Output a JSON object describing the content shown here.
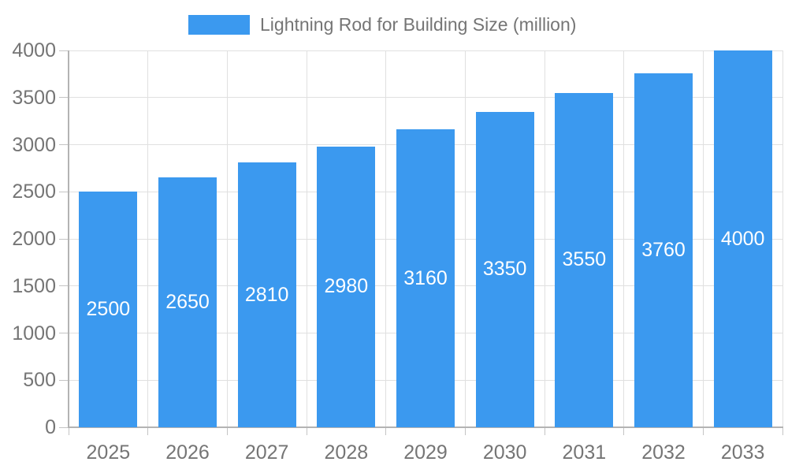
{
  "chart_data": {
    "type": "bar",
    "title": "",
    "legend": {
      "label": "Lightning Rod for Building Size (million)",
      "position": "top"
    },
    "categories": [
      "2025",
      "2026",
      "2027",
      "2028",
      "2029",
      "2030",
      "2031",
      "2032",
      "2033"
    ],
    "series": [
      {
        "name": "Lightning Rod for Building Size (million)",
        "values": [
          2500,
          2650,
          2810,
          2980,
          3160,
          3350,
          3550,
          3760,
          4000
        ]
      }
    ],
    "value_labels": [
      2500,
      2650,
      2810,
      2980,
      3160,
      3350,
      3550,
      3760,
      4000
    ],
    "xlabel": "",
    "ylabel": "",
    "ylim": [
      0,
      4000
    ],
    "ytick_step": 500,
    "yticks": [
      0,
      500,
      1000,
      1500,
      2000,
      2500,
      3000,
      3500,
      4000
    ],
    "grid": true,
    "value_label_position": "inside-center",
    "colors": {
      "bar": "#3B99EF",
      "axis_text": "#757575",
      "value_label_text": "#FFFFFF",
      "gridline": "#E0E0E0",
      "tick": "#C4C4C4",
      "axis_line": "#B3B3B3",
      "background": "#FFFFFF"
    }
  }
}
